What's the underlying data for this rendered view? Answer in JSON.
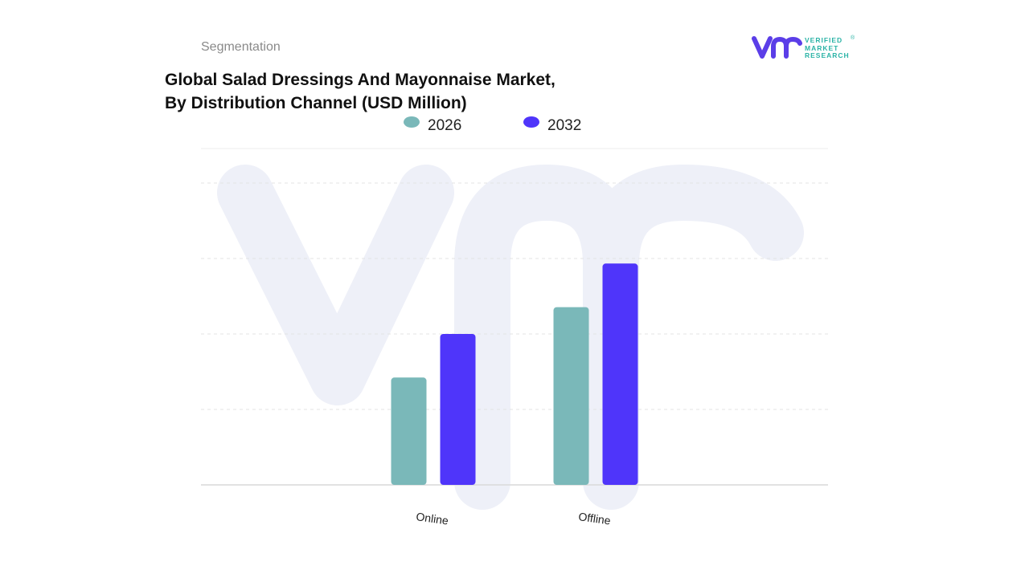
{
  "header": {
    "section_label": "Segmentation",
    "title_line1": "Global Salad Dressings And Mayonnaise Market,",
    "title_line2": "By Distribution Channel (USD Million)"
  },
  "brand": {
    "line1": "VERIFIED",
    "line2": "MARKET",
    "line3": "RESEARCH",
    "reg": "®",
    "logo_color": "#5b3ee8",
    "text_color": "#2bb3a6"
  },
  "chart_data": {
    "type": "bar",
    "title": "Global Salad Dressings And Mayonnaise Market, By Distribution Channel (USD Million)",
    "categories": [
      "Online",
      "Offline"
    ],
    "series": [
      {
        "name": "2026",
        "values": [
          3.2,
          5.3
        ],
        "color": "#7ab8b9"
      },
      {
        "name": "2032",
        "values": [
          4.5,
          6.6
        ],
        "color": "#4f35fa"
      }
    ],
    "ylim": [
      0,
      9
    ],
    "grid": true,
    "legend": "top-center",
    "xlabel": "",
    "ylabel": ""
  }
}
